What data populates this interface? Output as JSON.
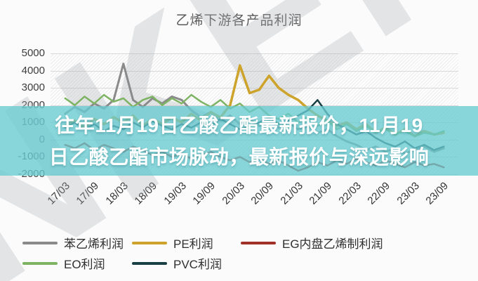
{
  "title": "乙烯下游各产品利润",
  "watermark_text": "NKER",
  "banner": {
    "line1": "往年11月19日乙酸乙酯最新报价，11月19",
    "line2": "日乙酸乙酯市场脉动，最新报价与深远影响",
    "background": "#68cbd1",
    "text_color": "#ffffff"
  },
  "chart_data": {
    "type": "line",
    "title": "乙烯下游各产品利润",
    "xlabel": "",
    "ylabel": "",
    "ylim": [
      -2000,
      5000
    ],
    "y_ticks": [
      5000,
      4000,
      3000,
      2000,
      1000,
      0,
      -1000,
      -2000
    ],
    "x_tick_labels": [
      "17/03",
      "17/09",
      "18/03",
      "18/09",
      "19/03",
      "19/09",
      "20/03",
      "20/09",
      "21/03",
      "21/09",
      "22/03",
      "22/09",
      "23/03",
      "23/09"
    ],
    "grid": true,
    "legend_position": "bottom",
    "series": [
      {
        "name": "苯乙烯利润",
        "color": "#8a8a8a",
        "width": 3,
        "values": [
          1500,
          1900,
          1600,
          2100,
          1800,
          2300,
          4400,
          2300,
          1900,
          2400,
          2100,
          2500,
          2300,
          1700,
          1300,
          1600,
          1100,
          1400,
          900,
          1200,
          800,
          1100,
          700,
          1000,
          600,
          800,
          400,
          600,
          200,
          -100,
          -300,
          -600,
          -400,
          -700,
          -500,
          -800,
          -600,
          -400,
          -700,
          -500
        ]
      },
      {
        "name": "PE利润",
        "color": "#cda32b",
        "width": 3.5,
        "values": [
          800,
          1100,
          700,
          1200,
          900,
          1300,
          1000,
          1400,
          800,
          1200,
          900,
          1300,
          1000,
          1500,
          1100,
          1600,
          1300,
          2000,
          4300,
          2700,
          2900,
          3700,
          3000,
          2600,
          2300,
          1800,
          1400,
          1100,
          800,
          1000,
          600,
          900,
          400,
          700,
          300,
          600,
          200,
          500,
          300,
          400
        ]
      },
      {
        "name": "EG内盘乙烯制利润",
        "color": "#a03028",
        "width": 2.5,
        "values": [
          -300,
          -500,
          -200,
          -600,
          -300,
          -500,
          -700,
          -400,
          -600,
          -900,
          -700,
          -1000,
          -800,
          -1100,
          -900,
          -700,
          -1000,
          -1200,
          -1000,
          -1300,
          -1100,
          -1400,
          -1200,
          -1500,
          -1800,
          -1600,
          -1300,
          -1500,
          -1200,
          -1400,
          -1100,
          -1300,
          -1500,
          -1200,
          -1400,
          -1600,
          -1300,
          -1500,
          -1400,
          -1600
        ]
      },
      {
        "name": "EO利润",
        "color": "#7db363",
        "width": 2.5,
        "values": [
          2400,
          2000,
          2500,
          2100,
          2600,
          2200,
          2400,
          1900,
          2300,
          2500,
          2000,
          2400,
          2100,
          2600,
          2200,
          1900,
          2300,
          1800,
          2100,
          1600,
          1900,
          1400,
          1200,
          1500,
          1000,
          1300,
          800,
          1100,
          600,
          900,
          500,
          800,
          400,
          600,
          300,
          500,
          200,
          400,
          300,
          500
        ]
      },
      {
        "name": "PVC利润",
        "color": "#173f44",
        "width": 2.5,
        "values": [
          700,
          1000,
          600,
          900,
          500,
          800,
          600,
          1000,
          700,
          1100,
          800,
          600,
          900,
          700,
          1000,
          800,
          1200,
          900,
          600,
          800,
          1000,
          1300,
          900,
          1100,
          1400,
          1700,
          2300,
          1500,
          900,
          600,
          300,
          500,
          100,
          -200,
          -400,
          -100,
          -500,
          -300,
          -600,
          -400
        ]
      }
    ]
  }
}
